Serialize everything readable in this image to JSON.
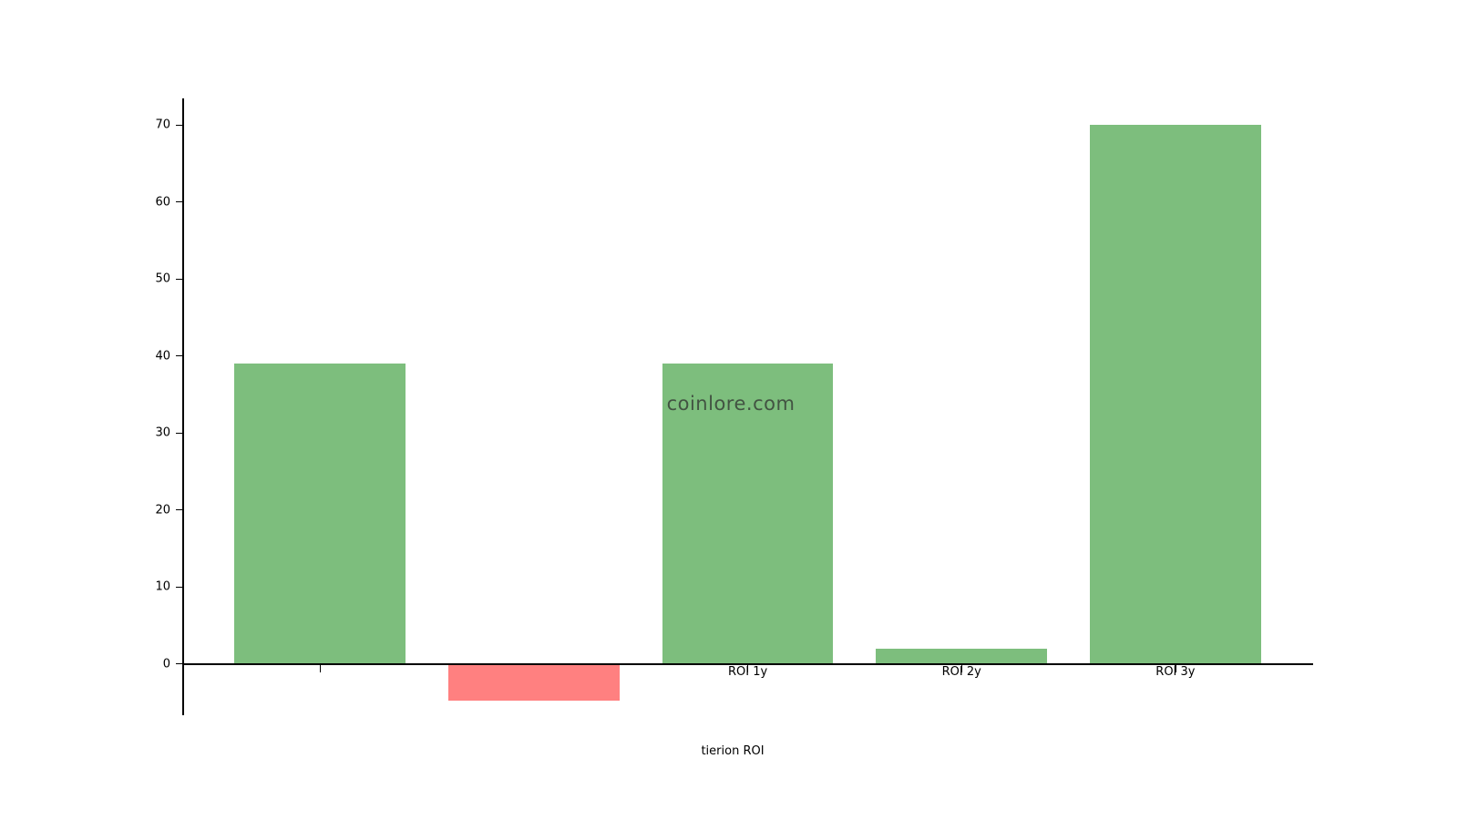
{
  "page": {
    "background": "#ffffff"
  },
  "watermark": {
    "text": "coinlore.com",
    "color": "#3d4b3d"
  },
  "chart_data": {
    "type": "bar",
    "title": "",
    "xlabel": "tierion ROI",
    "ylabel": "",
    "categories": [
      "",
      "",
      "ROI 1y",
      "ROI 2y",
      "ROI 3y"
    ],
    "values": [
      39,
      -4.8,
      39,
      2,
      70
    ],
    "bar_colors": [
      "#7dbe7d",
      "#ff8080",
      "#7dbe7d",
      "#7dbe7d",
      "#7dbe7d"
    ],
    "positive_color": "#7dbe7d",
    "negative_color": "#ff8080",
    "yticks": [
      0,
      10,
      20,
      30,
      40,
      50,
      60,
      70
    ],
    "ylim": [
      -6.7,
      73.4
    ],
    "axis_color": "#000000",
    "grid": false,
    "legend": null
  }
}
